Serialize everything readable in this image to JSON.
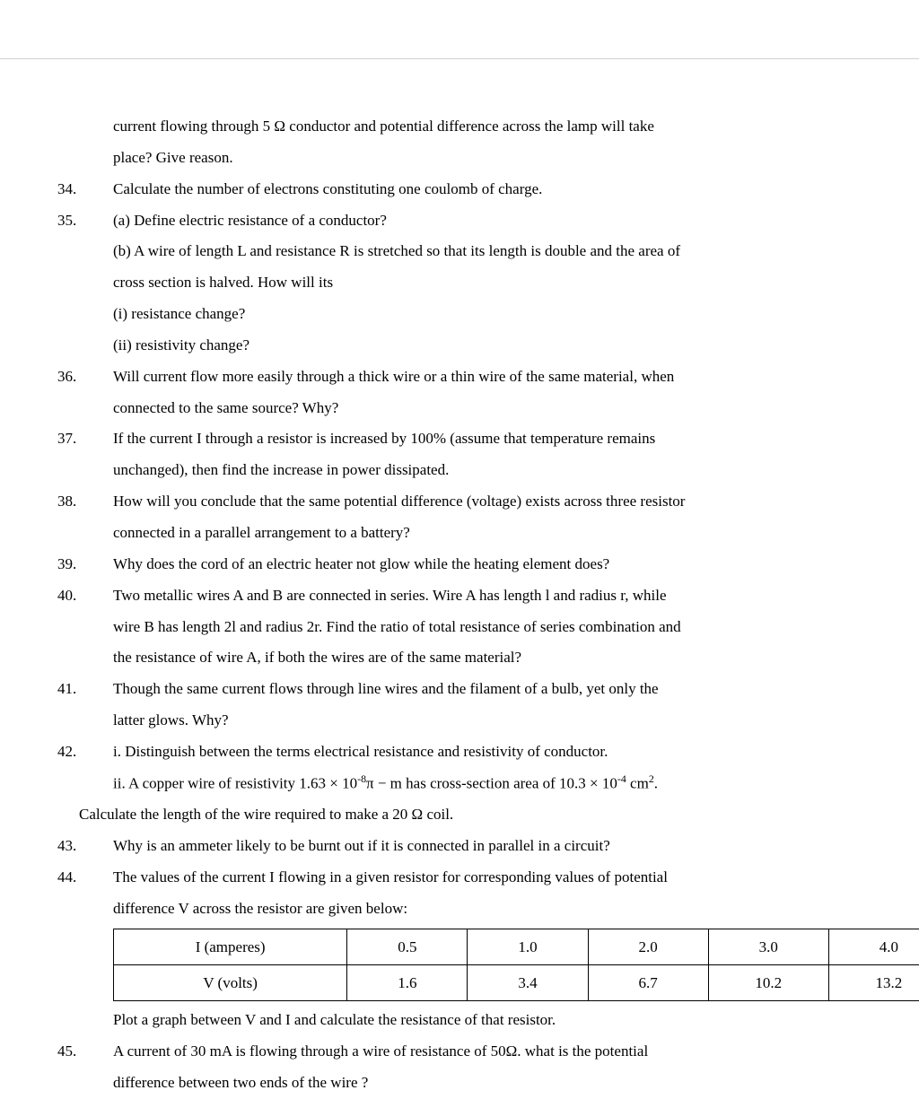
{
  "intro_line1": "current flowing through 5 Ω conductor and potential difference across the lamp will take",
  "intro_line2": "place? Give reason.",
  "q34_num": "34.",
  "q34_text": "Calculate the number of electrons constituting one coulomb of charge.",
  "q35_num": "35.",
  "q35_a": "(a) Define electric resistance of a conductor?",
  "q35_b1": "(b) A wire of length L and resistance R is stretched so that its length is double and the area of",
  "q35_b2": "cross section is halved. How will its",
  "q35_i": "(i) resistance change?",
  "q35_ii": "(ii) resistivity change?",
  "q36_num": "36.",
  "q36_l1": "Will current flow more easily through a thick wire or a thin wire of the same material, when",
  "q36_l2": "connected to the same source? Why?",
  "q37_num": "37.",
  "q37_l1": "If the current I through a resistor is increased by 100% (assume that temperature remains",
  "q37_l2": "unchanged), then find the increase in power dissipated.",
  "q38_num": "38.",
  "q38_l1": "How will you conclude that the same potential difference (voltage) exists across three resistor",
  "q38_l2": "connected in a parallel arrangement to a battery?",
  "q39_num": "39.",
  "q39_text": "Why does the cord of an electric heater not glow while the heating element does?",
  "q40_num": "40.",
  "q40_l1": "Two metallic wires A and B are connected in series. Wire A has length l and radius r, while",
  "q40_l2": "wire B has length 2l and radius 2r. Find the ratio of total resistance of series combination and",
  "q40_l3": "the resistance of wire A, if both the wires are of the same material?",
  "q41_num": "41.",
  "q41_l1": "Though the same current flows through line wires and the filament of a bulb, yet only the",
  "q41_l2": "latter glows. Why?",
  "q42_num": "42.",
  "q42_i": "  i. Distinguish between the terms electrical resistance and resistivity of conductor.",
  "q42_ii_pre": " ii. A copper wire of resistivity 1.63 × 10",
  "q42_ii_exp1": "-8",
  "q42_ii_mid": "π − m has cross-section area of 10.3 × 10",
  "q42_ii_exp2": "-4",
  "q42_ii_post": " cm",
  "q42_ii_exp3": "2",
  "q42_ii_end": ".",
  "q42_ii_l2": "Calculate the length of the wire required to make a 20 Ω coil.",
  "q43_num": "43.",
  "q43_text": "Why is an ammeter likely to be burnt out if it is connected in parallel in a circuit?",
  "q44_num": "44.",
  "q44_l1": "The values of the current I flowing in a given resistor for corresponding values of potential",
  "q44_l2": "difference V across the resistor are given below:",
  "q44_after": "Plot a graph between V and I and calculate the resistance of that resistor.",
  "q45_num": "45.",
  "q45_l1": "A current of 30 mA is flowing through a wire of resistance of 50Ω. what is the potential",
  "q45_l2": "difference between two ends of the wire ?",
  "table": {
    "row1_label": "I (amperes)",
    "row1_vals": [
      "0.5",
      "1.0",
      "2.0",
      "3.0",
      "4.0"
    ],
    "row2_label": "V (volts)",
    "row2_vals": [
      "1.6",
      "3.4",
      "6.7",
      "10.2",
      "13.2"
    ]
  },
  "colors": {
    "text": "#000000",
    "background": "#ffffff",
    "divider": "#d0d0d0",
    "table_border": "#000000"
  },
  "fonts": {
    "body_size": 17,
    "line_height": 2.05
  }
}
